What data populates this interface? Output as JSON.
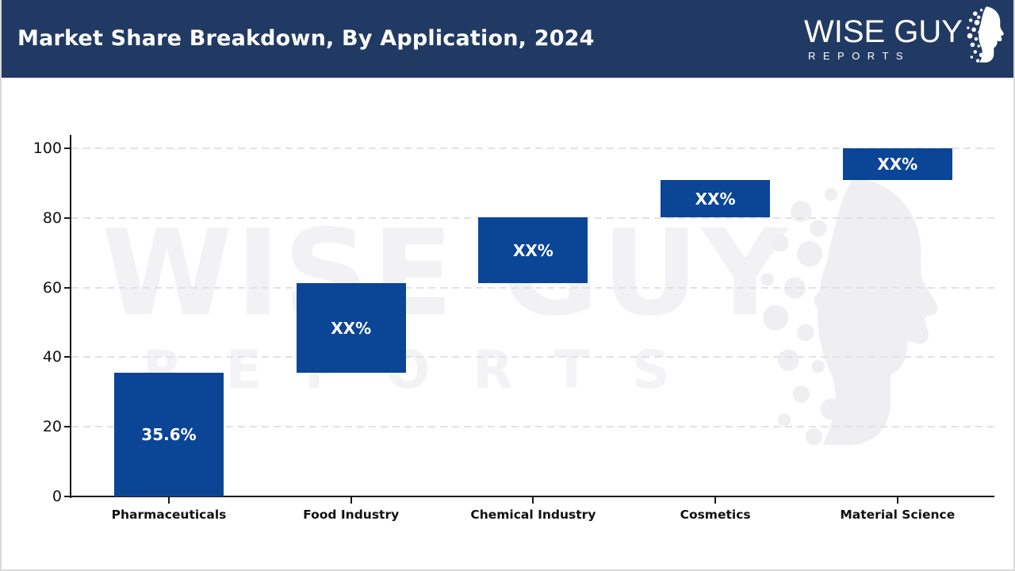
{
  "page": {
    "background": "#ffffff",
    "border_color": "#d9d9d9"
  },
  "header": {
    "background": "#213a63",
    "title": "Market Share Breakdown, By Application, 2024",
    "logo": {
      "line1": "WISE GUY",
      "line2": "REPORTS"
    }
  },
  "watermark": {
    "line1": "WISE GUY",
    "line2": "REPORTS",
    "color": "#f2f2f4"
  },
  "chart_data": {
    "type": "bar",
    "subtype": "waterfall",
    "title": "Market Share Breakdown, By Application, 2024",
    "categories": [
      "Pharmaceuticals",
      "Food Industry",
      "Chemical Industry",
      "Cosmetics",
      "Material Science"
    ],
    "series": [
      {
        "name": "Market share (%)",
        "segments": [
          {
            "category": "Pharmaceuticals",
            "start": 0,
            "end": 35.6,
            "label": "35.6%"
          },
          {
            "category": "Food Industry",
            "start": 35.6,
            "end": 61.2,
            "label": "XX%"
          },
          {
            "category": "Chemical Industry",
            "start": 61.2,
            "end": 80.2,
            "label": "XX%"
          },
          {
            "category": "Cosmetics",
            "start": 80.2,
            "end": 90.8,
            "label": "XX%"
          },
          {
            "category": "Material Science",
            "start": 90.8,
            "end": 100,
            "label": "XX%"
          }
        ]
      }
    ],
    "xlabel": "",
    "ylabel": "",
    "ylim": [
      0,
      104
    ],
    "yticks": [
      0,
      20,
      40,
      60,
      80,
      100
    ],
    "grid": "horizontal-dashed",
    "legend": "none",
    "bar_color": "#0a4596",
    "bar_label_color": "#ffffff",
    "axis_color": "#1a1a1a"
  }
}
